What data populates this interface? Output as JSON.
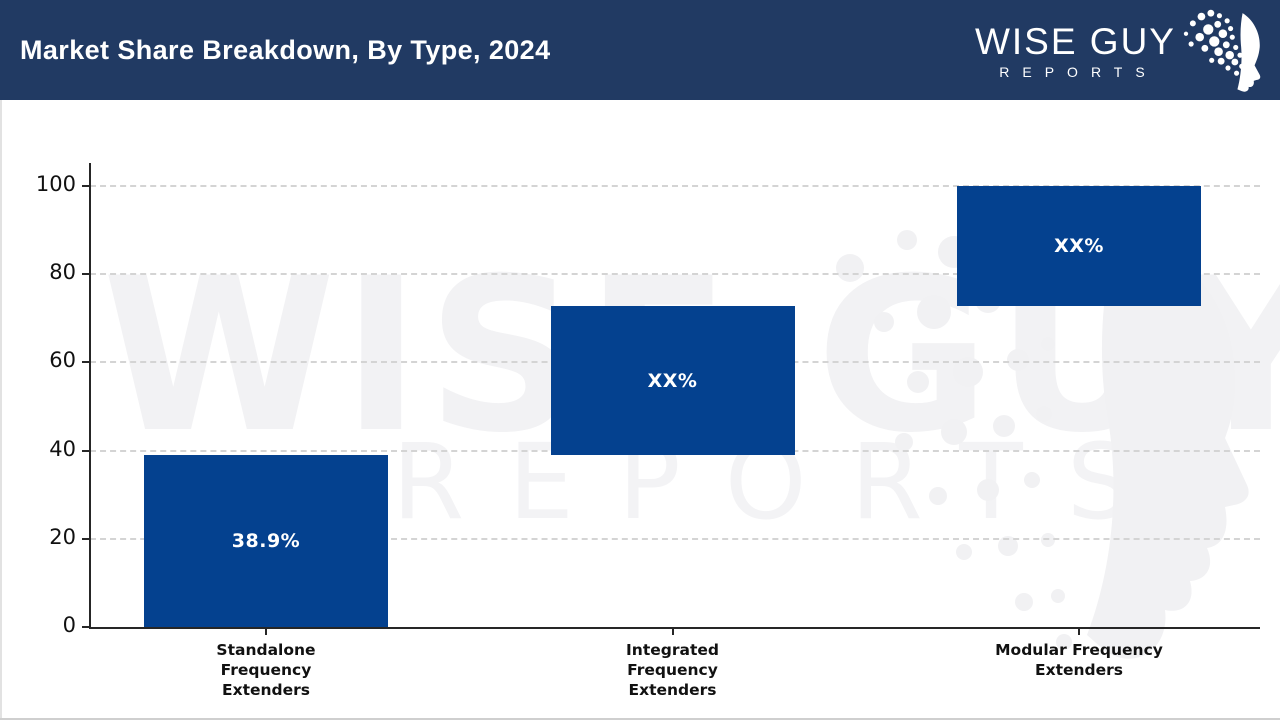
{
  "header": {
    "title": "Market Share Breakdown, By Type, 2024",
    "logo": {
      "primary": "WISE GUY",
      "secondary": "REPORTS"
    },
    "bg_color": "#213a63"
  },
  "watermark": {
    "primary": "WISE GUY",
    "secondary": "REPORTS"
  },
  "chart_data": {
    "type": "bar",
    "subtype": "waterfall",
    "title": "Market Share Breakdown, By Type, 2024",
    "categories": [
      "Standalone\nFrequency\nExtenders",
      "Integrated\nFrequency\nExtenders",
      "Modular Frequency\nExtenders"
    ],
    "segments": [
      {
        "category": "Standalone Frequency Extenders",
        "start": 0,
        "end": 38.9,
        "label": "38.9%"
      },
      {
        "category": "Integrated Frequency Extenders",
        "start": 38.9,
        "end": 72.8,
        "label": "XX%"
      },
      {
        "category": "Modular Frequency Extenders",
        "start": 72.8,
        "end": 100,
        "label": "XX%"
      }
    ],
    "ylim": [
      0,
      105
    ],
    "yticks": [
      0,
      20,
      40,
      60,
      80,
      100
    ],
    "grid": "dashed horizontal",
    "bar_color": "#04418f",
    "label_color": "#ffffff",
    "axis_color": "#262626"
  }
}
